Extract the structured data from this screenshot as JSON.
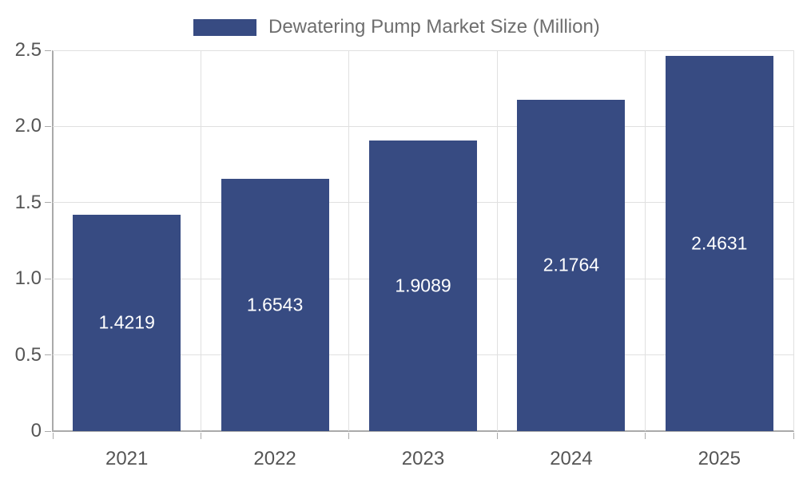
{
  "legend": {
    "label": "Dewatering Pump Market Size (Million)"
  },
  "chart_data": {
    "type": "bar",
    "title": "Dewatering Pump Market Size (Million)",
    "categories": [
      "2021",
      "2022",
      "2023",
      "2024",
      "2025"
    ],
    "values": [
      1.4219,
      1.6543,
      1.9089,
      2.1764,
      2.4631
    ],
    "value_labels": [
      "1.4219",
      "1.6543",
      "1.9089",
      "2.1764",
      "2.4631"
    ],
    "xlabel": "",
    "ylabel": "",
    "ylim": [
      0,
      2.5
    ],
    "yticks": [
      0,
      0.5,
      1.0,
      1.5,
      2.0,
      2.5
    ],
    "ytick_labels": [
      "0",
      "0.5",
      "1.0",
      "1.5",
      "2.0",
      "2.5"
    ],
    "grid": true,
    "legend_position": "top-center",
    "colors": {
      "bar": "#374b82",
      "grid": "#e0e0e0",
      "axis": "#aaaaaa",
      "tick_label": "#555555",
      "legend_text": "#6e6e6e",
      "bar_label": "#ffffff",
      "background": "#ffffff"
    }
  }
}
